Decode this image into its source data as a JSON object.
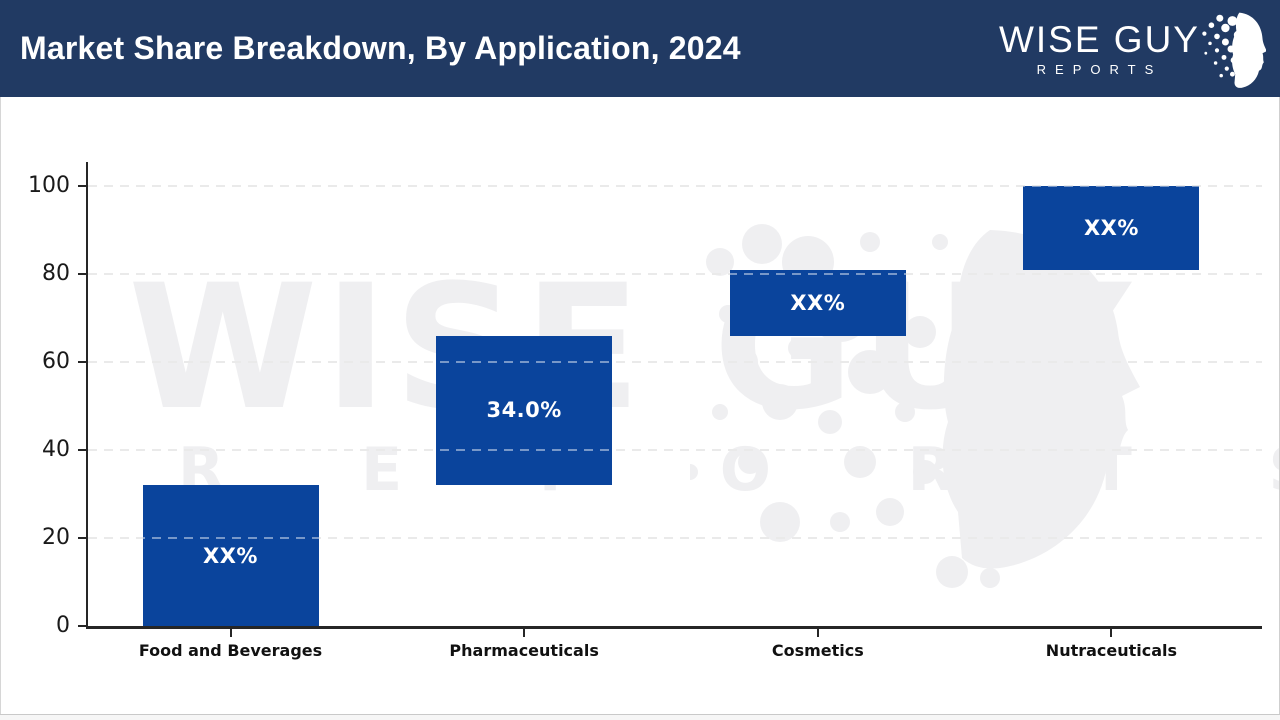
{
  "header": {
    "title": "Market Share Breakdown, By Application, 2024",
    "bg_color": "#213a63",
    "logo": {
      "line1": "WISE GUY",
      "line2": "REPORTS"
    }
  },
  "watermark": {
    "line1": "WISE GUY",
    "line2": "R E P O R T S"
  },
  "colors": {
    "bar_blue": "#0a449c",
    "header_navy": "#213a63",
    "axis": "#262626",
    "gridline": "#d9d9d9",
    "watermark_gray": "#efeff1"
  },
  "chart_data": {
    "type": "bar",
    "subtype": "floating-waterfall",
    "title": "Market Share Breakdown, By Application, 2024",
    "xlabel": "",
    "ylabel": "",
    "categories": [
      "Food and Beverages",
      "Pharmaceuticals",
      "Cosmetics",
      "Nutraceuticals"
    ],
    "bars": [
      {
        "category": "Food and Beverages",
        "start": 0,
        "end": 32,
        "label": "XX%"
      },
      {
        "category": "Pharmaceuticals",
        "start": 32,
        "end": 66,
        "label": "34.0%",
        "value": 34.0
      },
      {
        "category": "Cosmetics",
        "start": 66,
        "end": 81,
        "label": "XX%"
      },
      {
        "category": "Nutraceuticals",
        "start": 81,
        "end": 100,
        "label": "XX%"
      }
    ],
    "ylim": [
      0,
      100
    ],
    "yticks": [
      0,
      20,
      40,
      60,
      80,
      100
    ],
    "grid": "horizontal dashed, drawn over bars",
    "legend": "none",
    "bar_color": "#0a449c",
    "label_color": "#ffffff"
  }
}
